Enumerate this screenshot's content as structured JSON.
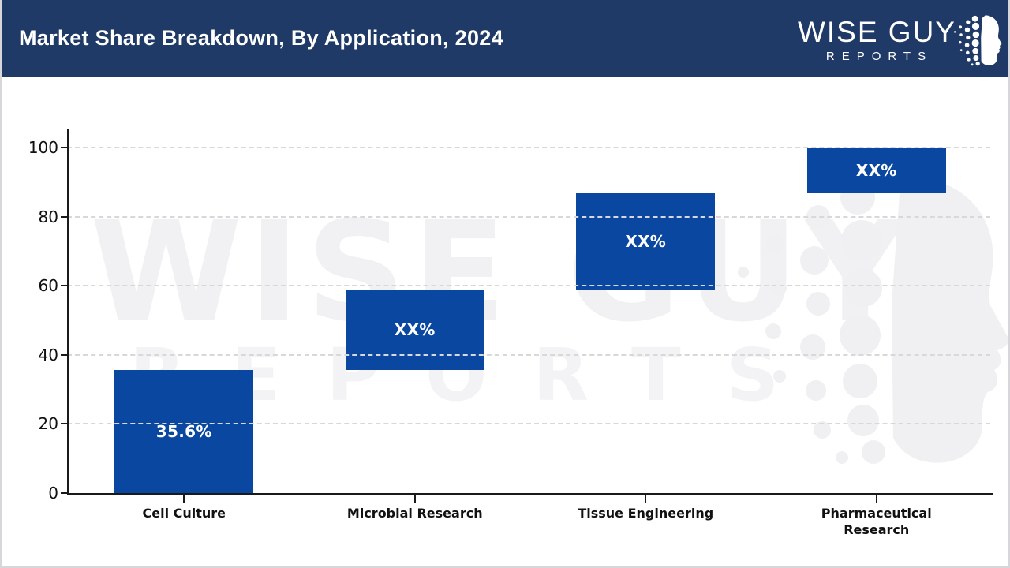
{
  "header": {
    "title": "Market Share Breakdown, By Application, 2024",
    "brand": {
      "line1": "WISE GUY",
      "line2": "REPORTS"
    },
    "background_color": "#1F3A66"
  },
  "watermark": {
    "line1": "WISE GUY",
    "line2": "REPORTS"
  },
  "chart_data": {
    "type": "bar",
    "subtype": "waterfall-stacked-percent",
    "title": "Market Share Breakdown, By Application, 2024",
    "categories": [
      "Cell Culture",
      "Microbial Research",
      "Tissue Engineering",
      "Pharmaceutical Research"
    ],
    "segments": [
      {
        "category": "Cell Culture",
        "start": 0,
        "end": 35.6,
        "label": "35.6%"
      },
      {
        "category": "Microbial Research",
        "start": 35.6,
        "end": 59,
        "label": "XX%"
      },
      {
        "category": "Tissue Engineering",
        "start": 59,
        "end": 86.8,
        "label": "XX%"
      },
      {
        "category": "Pharmaceutical Research",
        "start": 86.8,
        "end": 100,
        "label": "XX%"
      }
    ],
    "xlabel": "",
    "ylabel": "",
    "ylim": [
      0,
      100
    ],
    "yticks": [
      0,
      20,
      40,
      60,
      80,
      100
    ],
    "grid": "horizontal-dashed",
    "legend": "none",
    "bar_color": "#0A47A0",
    "bar_label_color": "#FFFFFF",
    "gridline_color": "#D8D8D8",
    "axis_color": "#1A1A1A"
  }
}
